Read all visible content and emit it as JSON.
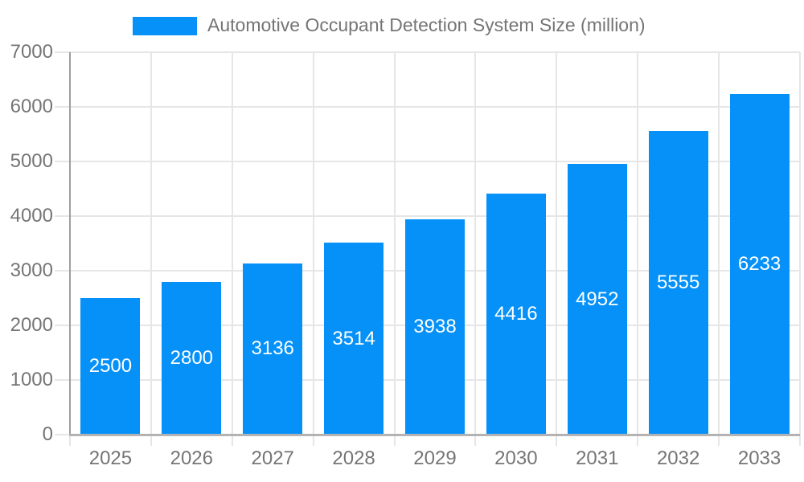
{
  "chart_data": {
    "type": "bar",
    "title": "Automotive Occupant Detection System Size (million)",
    "categories": [
      "2025",
      "2026",
      "2027",
      "2028",
      "2029",
      "2030",
      "2031",
      "2032",
      "2033"
    ],
    "values": [
      2500,
      2800,
      3136,
      3514,
      3938,
      4416,
      4952,
      5555,
      6233
    ],
    "xlabel": "",
    "ylabel": "",
    "ylim": [
      0,
      7000
    ],
    "yticks": [
      0,
      1000,
      2000,
      3000,
      4000,
      5000,
      6000,
      7000
    ],
    "grid": true,
    "legend_position": "top",
    "value_labels": "inside-middle",
    "colors": {
      "bar": "#0591f8",
      "value_label": "#ffffff",
      "axis_text": "#757575",
      "legend_text": "#757575",
      "gridline": "#e6e6e6",
      "axis_line": "#9e9e9e",
      "baseline": "#b3b3b3",
      "background": "#ffffff"
    }
  }
}
